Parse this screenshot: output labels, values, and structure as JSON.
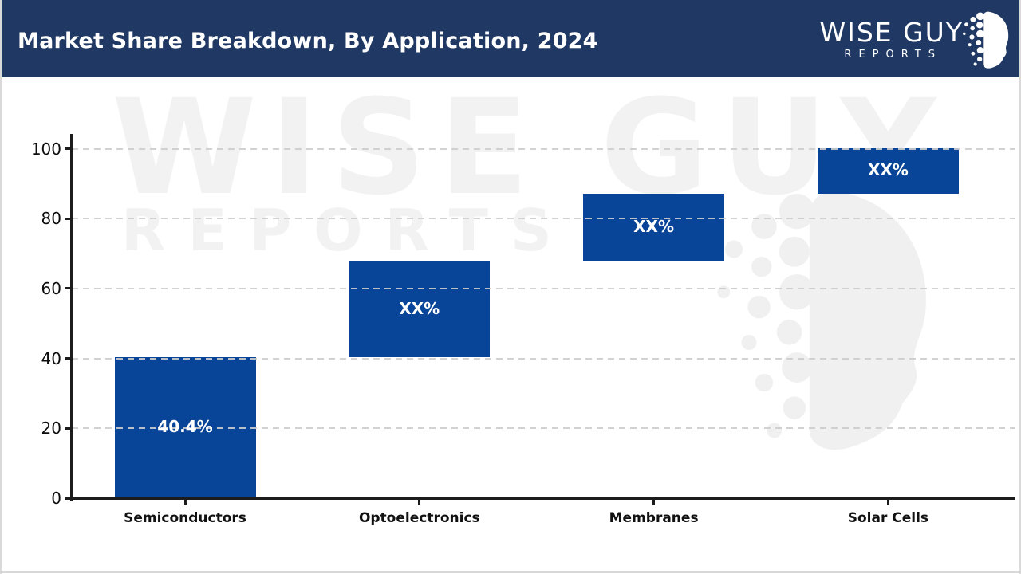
{
  "header": {
    "title": "Market Share Breakdown, By Application, 2024",
    "bg_color": "#1F3864",
    "logo": {
      "line1": "WISE GUY",
      "line2": "REPORTS"
    }
  },
  "watermark": {
    "line1": "WISE GUY",
    "line2": "REPORTS"
  },
  "chart_data": {
    "type": "bar",
    "subtype": "waterfall-floating-segments",
    "title": "Market Share Breakdown, By Application, 2024",
    "categories": [
      "Semiconductors",
      "Optoelectronics",
      "Membranes",
      "Solar Cells"
    ],
    "series": [
      {
        "name": "Market Share (%)",
        "segments": [
          {
            "start": 0,
            "end": 40.4
          },
          {
            "start": 40.4,
            "end": 67.7
          },
          {
            "start": 67.7,
            "end": 87.2
          },
          {
            "start": 87.2,
            "end": 100.2
          }
        ]
      }
    ],
    "bar_labels": [
      "40.4%",
      "XX%",
      "XX%",
      "XX%"
    ],
    "xlabel": "",
    "ylabel": "",
    "ylim": [
      0,
      100
    ],
    "yticks": [
      0,
      20,
      40,
      60,
      80,
      100
    ],
    "grid": "horizontal-dashed-over-bars",
    "legend": "none",
    "bar_color": "#084598",
    "bar_label_color": "#ffffff",
    "axis_color": "#1c1c1c",
    "grid_color": "#d5d5d5",
    "watermark_color": "#f2f2f2"
  }
}
